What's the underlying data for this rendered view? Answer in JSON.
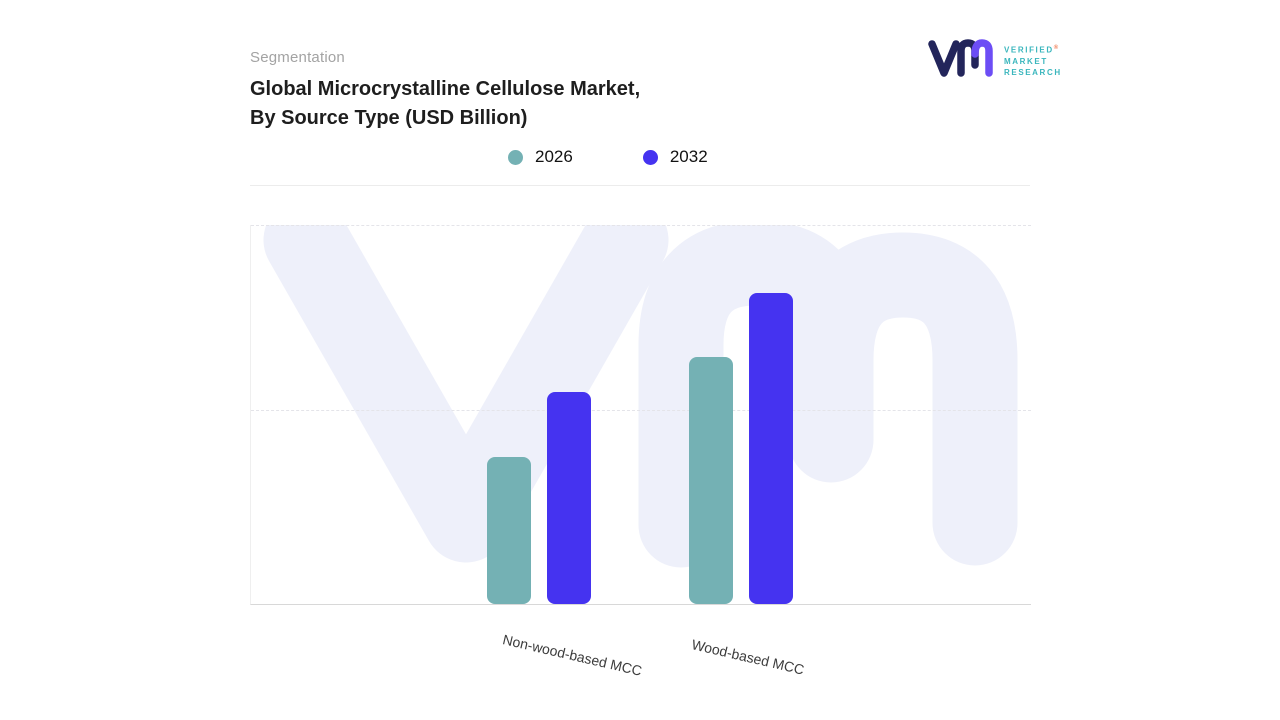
{
  "page": {
    "eyebrow": "Segmentation",
    "title_line1": "Global Microcrystalline Cellulose Market,",
    "title_line2": "By Source Type (USD Billion)"
  },
  "logo": {
    "line1": "VERIFIED",
    "line2": "MARKET",
    "line3": "RESEARCH",
    "registered": "®",
    "mark_navy": "#23255b",
    "mark_purple": "#6c4df5",
    "text_color": "#3ab6bd"
  },
  "legend": {
    "items": [
      {
        "label": "2026",
        "color": "#74b1b4"
      },
      {
        "label": "2032",
        "color": "#4533f0"
      }
    ]
  },
  "chart_data": {
    "type": "bar",
    "title": "Global Microcrystalline Cellulose Market, By Source Type (USD Billion)",
    "subtitle_eyebrow": "Segmentation",
    "categories": [
      "Non-wood-based MCC",
      "Wood-based MCC"
    ],
    "series": [
      {
        "name": "2026",
        "color": "#74b1b4",
        "values": [
          38.8,
          65.2
        ]
      },
      {
        "name": "2032",
        "color": "#4533f0",
        "values": [
          55.9,
          82.1
        ]
      }
    ],
    "value_axis": {
      "visible": false,
      "unit": "percent-of-plot-height",
      "note": "no numeric axis labels shown in source image; values estimated from bar heights relative to plot area"
    },
    "grid": "dashed-horizontal",
    "legend_position": "top-center",
    "watermark_color": "#eef0fa"
  }
}
